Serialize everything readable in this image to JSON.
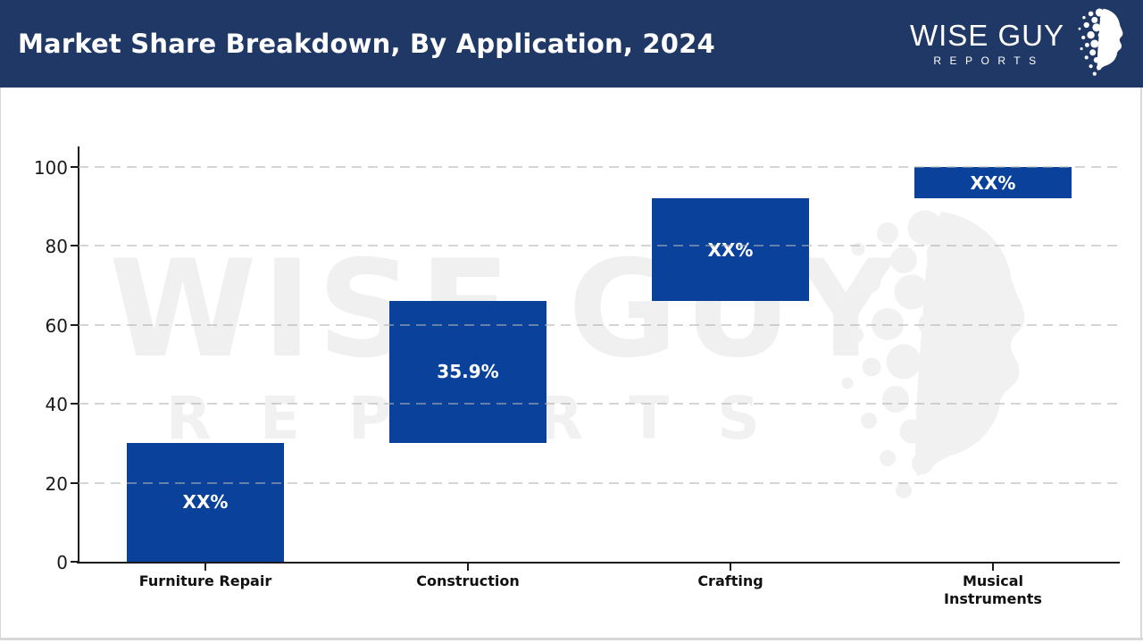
{
  "header": {
    "title": "Market Share Breakdown, By Application, 2024",
    "bg_color": "#1f3865",
    "logo": {
      "line1": "WISE GUY",
      "line2": "REPORTS"
    }
  },
  "watermark": {
    "line1": "WISE GUY",
    "line2": "REPORTS"
  },
  "chart_data": {
    "type": "bar",
    "subtype": "floating-segment-waterfall",
    "title": "Market Share Breakdown, By Application, 2024",
    "categories": [
      "Furniture Repair",
      "Construction",
      "Crafting",
      "Musical Instruments"
    ],
    "categories_display": [
      "Furniture Repair",
      "Construction",
      "Crafting",
      "Musical\nInstruments"
    ],
    "series": [
      {
        "name": "Market Share (%)",
        "segments": [
          {
            "category": "Furniture Repair",
            "start": 0,
            "end": 30.2,
            "label": "XX%"
          },
          {
            "category": "Construction",
            "start": 30.2,
            "end": 66.1,
            "label": "35.9%",
            "value": 35.9
          },
          {
            "category": "Crafting",
            "start": 66.1,
            "end": 92.0,
            "label": "XX%"
          },
          {
            "category": "Musical Instruments",
            "start": 92.0,
            "end": 100.0,
            "label": "XX%"
          }
        ]
      }
    ],
    "xlabel": "",
    "ylabel": "",
    "ylim": [
      0,
      100
    ],
    "yticks": [
      0,
      20,
      40,
      60,
      80,
      100
    ],
    "grid": {
      "axis": "y",
      "style": "dashed",
      "over_bars": true
    },
    "legend": null,
    "bar_color": "#0a429b",
    "bar_label_color": "#ffffff"
  }
}
